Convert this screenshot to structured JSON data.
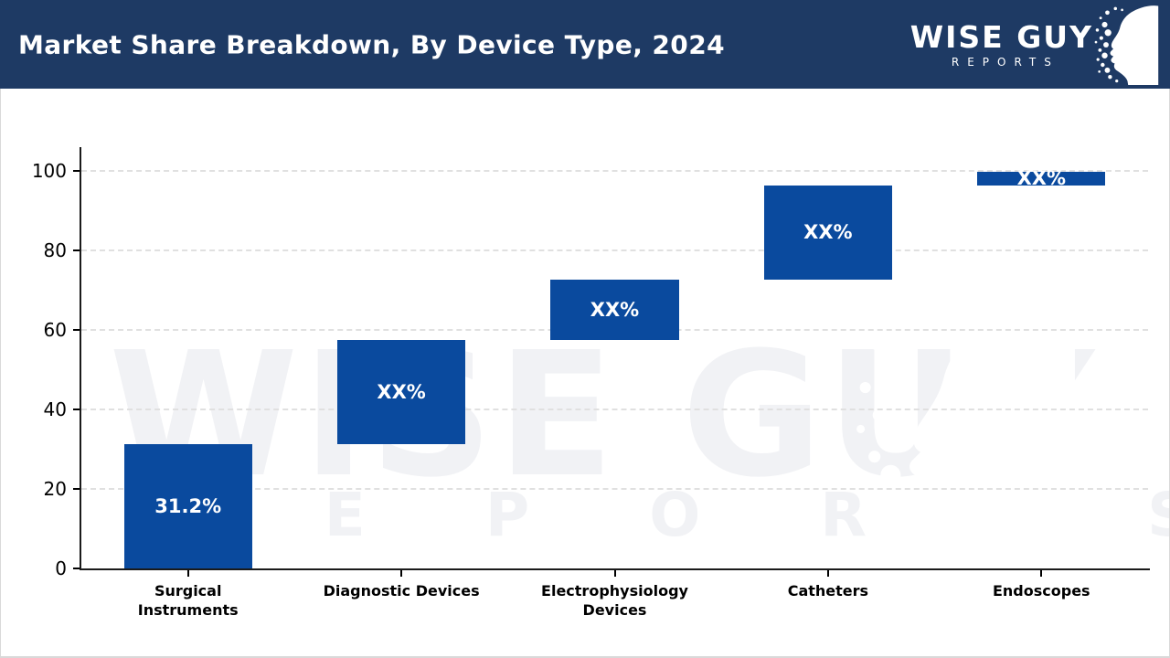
{
  "header": {
    "title": "Market Share Breakdown, By Device Type, 2024",
    "logo": {
      "line1": "WISE GUY",
      "line2": "REPORTS"
    },
    "bg_color": "#1e3a64"
  },
  "watermark": {
    "line1": "WISE GUY",
    "line2": "R E P O R T S"
  },
  "icons": {
    "logo_head": "dotted-head-profile",
    "watermark_head": "dotted-head-profile"
  },
  "colors": {
    "header_bg": "#1e3a64",
    "bar": "#0a4a9e",
    "grid": "#e0e0e0",
    "axis": "#1a1a1a",
    "watermark": "#f1f2f5",
    "figure_border": "#d9d9d9",
    "bar_label_text": "#ffffff"
  },
  "chart_data": {
    "type": "bar",
    "subtype": "waterfall",
    "title": "Market Share Breakdown, By Device Type, 2024",
    "xlabel": "",
    "ylabel": "",
    "categories": [
      "Surgical\nInstruments",
      "Diagnostic Devices",
      "Electrophysiology\nDevices",
      "Catheters",
      "Endoscopes"
    ],
    "segments": [
      {
        "category": "Surgical Instruments",
        "start": 0,
        "end": 31.2,
        "label": "31.2%"
      },
      {
        "category": "Diagnostic Devices",
        "start": 31.2,
        "end": 57.4,
        "label": "XX%"
      },
      {
        "category": "Electrophysiology Devices",
        "start": 57.4,
        "end": 72.7,
        "label": "XX%"
      },
      {
        "category": "Catheters",
        "start": 72.7,
        "end": 96.4,
        "label": "XX%"
      },
      {
        "category": "Endoscopes",
        "start": 96.4,
        "end": 99.7,
        "label": "XX%"
      }
    ],
    "yticks": [
      0,
      20,
      40,
      60,
      80,
      100
    ],
    "ylim": [
      0,
      105.5
    ],
    "grid": true,
    "grid_style": "dashed",
    "legend": false,
    "bar_color": "#0a4a9e",
    "bar_width_fraction": 0.6
  }
}
